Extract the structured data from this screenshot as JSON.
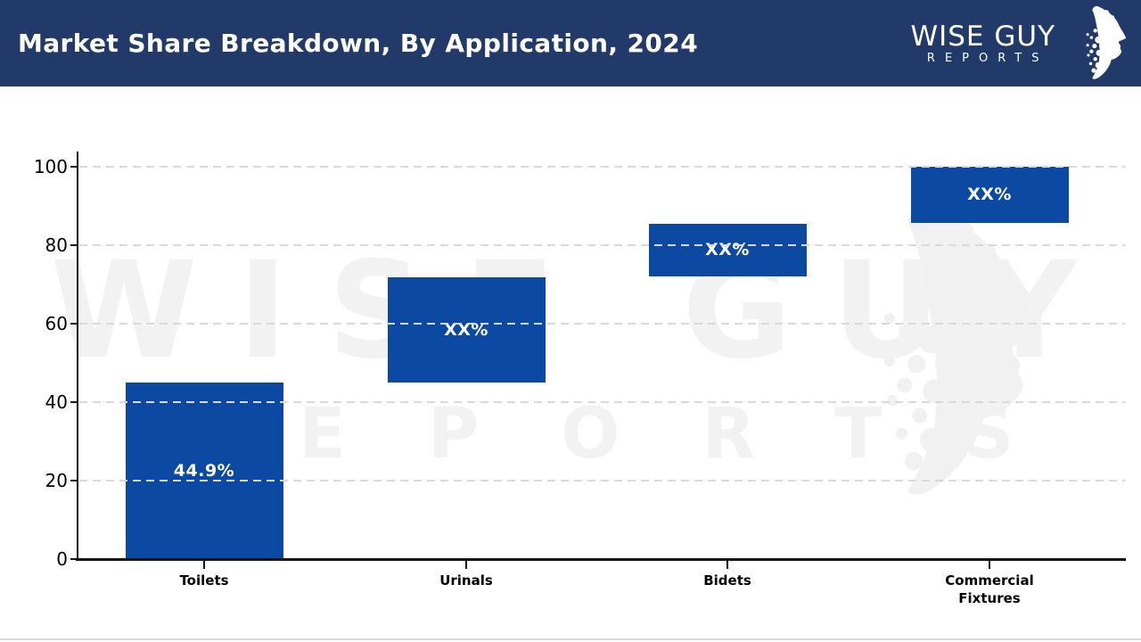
{
  "header": {
    "title": "Market Share Breakdown, By Application, 2024",
    "logo": {
      "line1": "WISE GUY",
      "line2": "REPORTS"
    }
  },
  "watermark": {
    "line1": "WISE GUY",
    "line2": "REPORTS"
  },
  "colors": {
    "header_bg": "#213A69",
    "bar": "#0C49A2",
    "grid": "#D9D9D9",
    "axis": "#151515",
    "bar_label": "#FFFFFF",
    "watermark": "#F2F2F2",
    "bottom_line": "#D9D9D9"
  },
  "chart_data": {
    "type": "bar",
    "subtype": "waterfall",
    "title": "Market Share Breakdown, By Application, 2024",
    "categories": [
      "Toilets",
      "Urinals",
      "Bidets",
      "Commercial\nFixtures"
    ],
    "bars": [
      {
        "category": "Toilets",
        "start": 0,
        "end": 44.9,
        "value": 44.9,
        "label": "44.9%"
      },
      {
        "category": "Urinals",
        "start": 45.0,
        "end": 71.8,
        "value": 26.8,
        "label": "XX%"
      },
      {
        "category": "Bidets",
        "start": 72.0,
        "end": 85.5,
        "value": 13.5,
        "label": "XX%"
      },
      {
        "category": "Commercial Fixtures",
        "start": 85.7,
        "end": 100.0,
        "value": 14.3,
        "label": "XX%"
      }
    ],
    "bar_color": "#0C49A2",
    "xlabel": "",
    "ylabel": "",
    "yticks": [
      0,
      20,
      40,
      60,
      80,
      100
    ],
    "ylim": [
      0,
      100
    ],
    "grid": "horizontal-dashed",
    "grid_over_bars": true,
    "legend": "none"
  }
}
